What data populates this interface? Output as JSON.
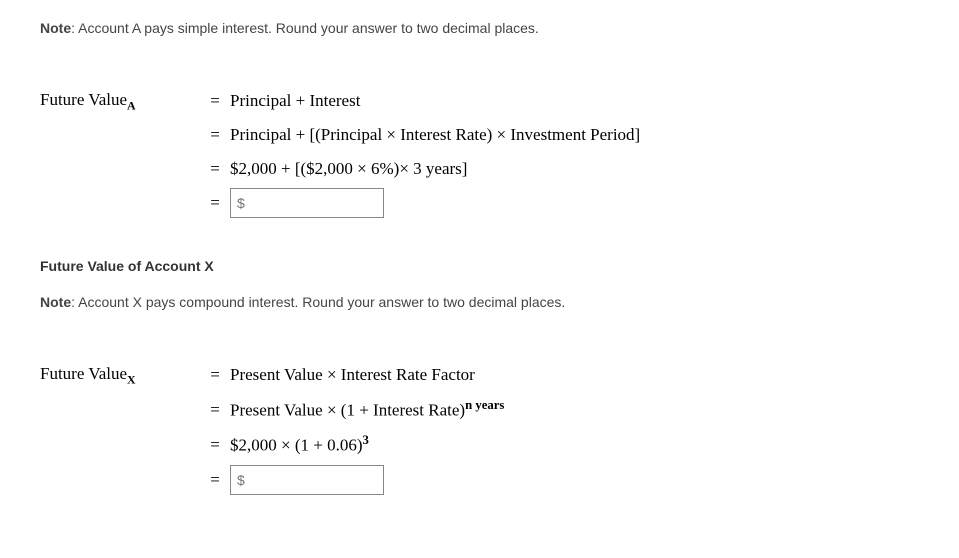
{
  "noteA": {
    "label": "Note",
    "text": ": Account A pays simple interest. Round your answer to two decimal places."
  },
  "eqA": {
    "lhsMain": "Future Value",
    "lhsSub": "A",
    "eq": "=",
    "line1": "Principal + Interest",
    "line2": "Principal + [(Principal × Interest Rate) × Investment Period]",
    "line3": "$2,000 + [($2,000 × 6%)× 3 years]",
    "placeholder": "$"
  },
  "sectionX": {
    "title": "Future Value of Account X"
  },
  "noteX": {
    "label": "Note",
    "text": ": Account X pays compound interest. Round your answer to two decimal places."
  },
  "eqX": {
    "lhsMain": "Future Value",
    "lhsSub": "X",
    "eq": "=",
    "line1": "Present Value × Interest Rate Factor",
    "line2_pre": "Present Value × (1 + Interest Rate)",
    "line2_sup": "n years",
    "line3_pre": "$2,000 × (1 + 0.06)",
    "line3_sup": "3",
    "placeholder": "$"
  }
}
